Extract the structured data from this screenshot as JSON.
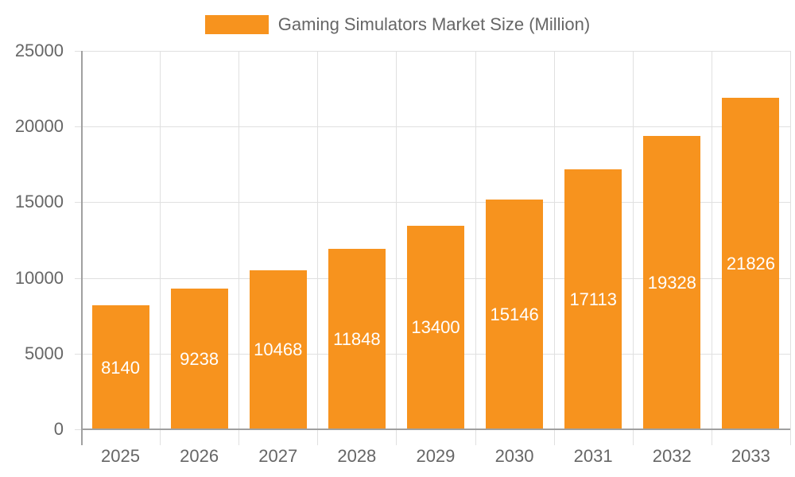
{
  "chart_data": {
    "type": "bar",
    "title": "",
    "legend": [
      "Gaming Simulators Market Size (Million)"
    ],
    "legend_position": "top",
    "xlabel": "",
    "ylabel": "",
    "categories": [
      "2025",
      "2026",
      "2027",
      "2028",
      "2029",
      "2030",
      "2031",
      "2032",
      "2033"
    ],
    "series": [
      {
        "name": "Gaming Simulators Market Size (Million)",
        "values": [
          8140,
          9238,
          10468,
          11848,
          13400,
          15146,
          17113,
          19328,
          21826
        ],
        "color": "#f7931e"
      }
    ],
    "ylim": [
      0,
      25000
    ],
    "yticks": [
      0,
      5000,
      10000,
      15000,
      20000,
      25000
    ],
    "grid": true,
    "data_labels": true
  },
  "legend": {
    "label": "Gaming Simulators Market Size (Million)",
    "color": "#f7931e"
  },
  "yticks": [
    "25000",
    "20000",
    "15000",
    "10000",
    "5000",
    "0"
  ],
  "bars": [
    {
      "year": "2025",
      "value": "8140"
    },
    {
      "year": "2026",
      "value": "9238"
    },
    {
      "year": "2027",
      "value": "10468"
    },
    {
      "year": "2028",
      "value": "11848"
    },
    {
      "year": "2029",
      "value": "13400"
    },
    {
      "year": "2030",
      "value": "15146"
    },
    {
      "year": "2031",
      "value": "17113"
    },
    {
      "year": "2032",
      "value": "19328"
    },
    {
      "year": "2033",
      "value": "21826"
    }
  ]
}
